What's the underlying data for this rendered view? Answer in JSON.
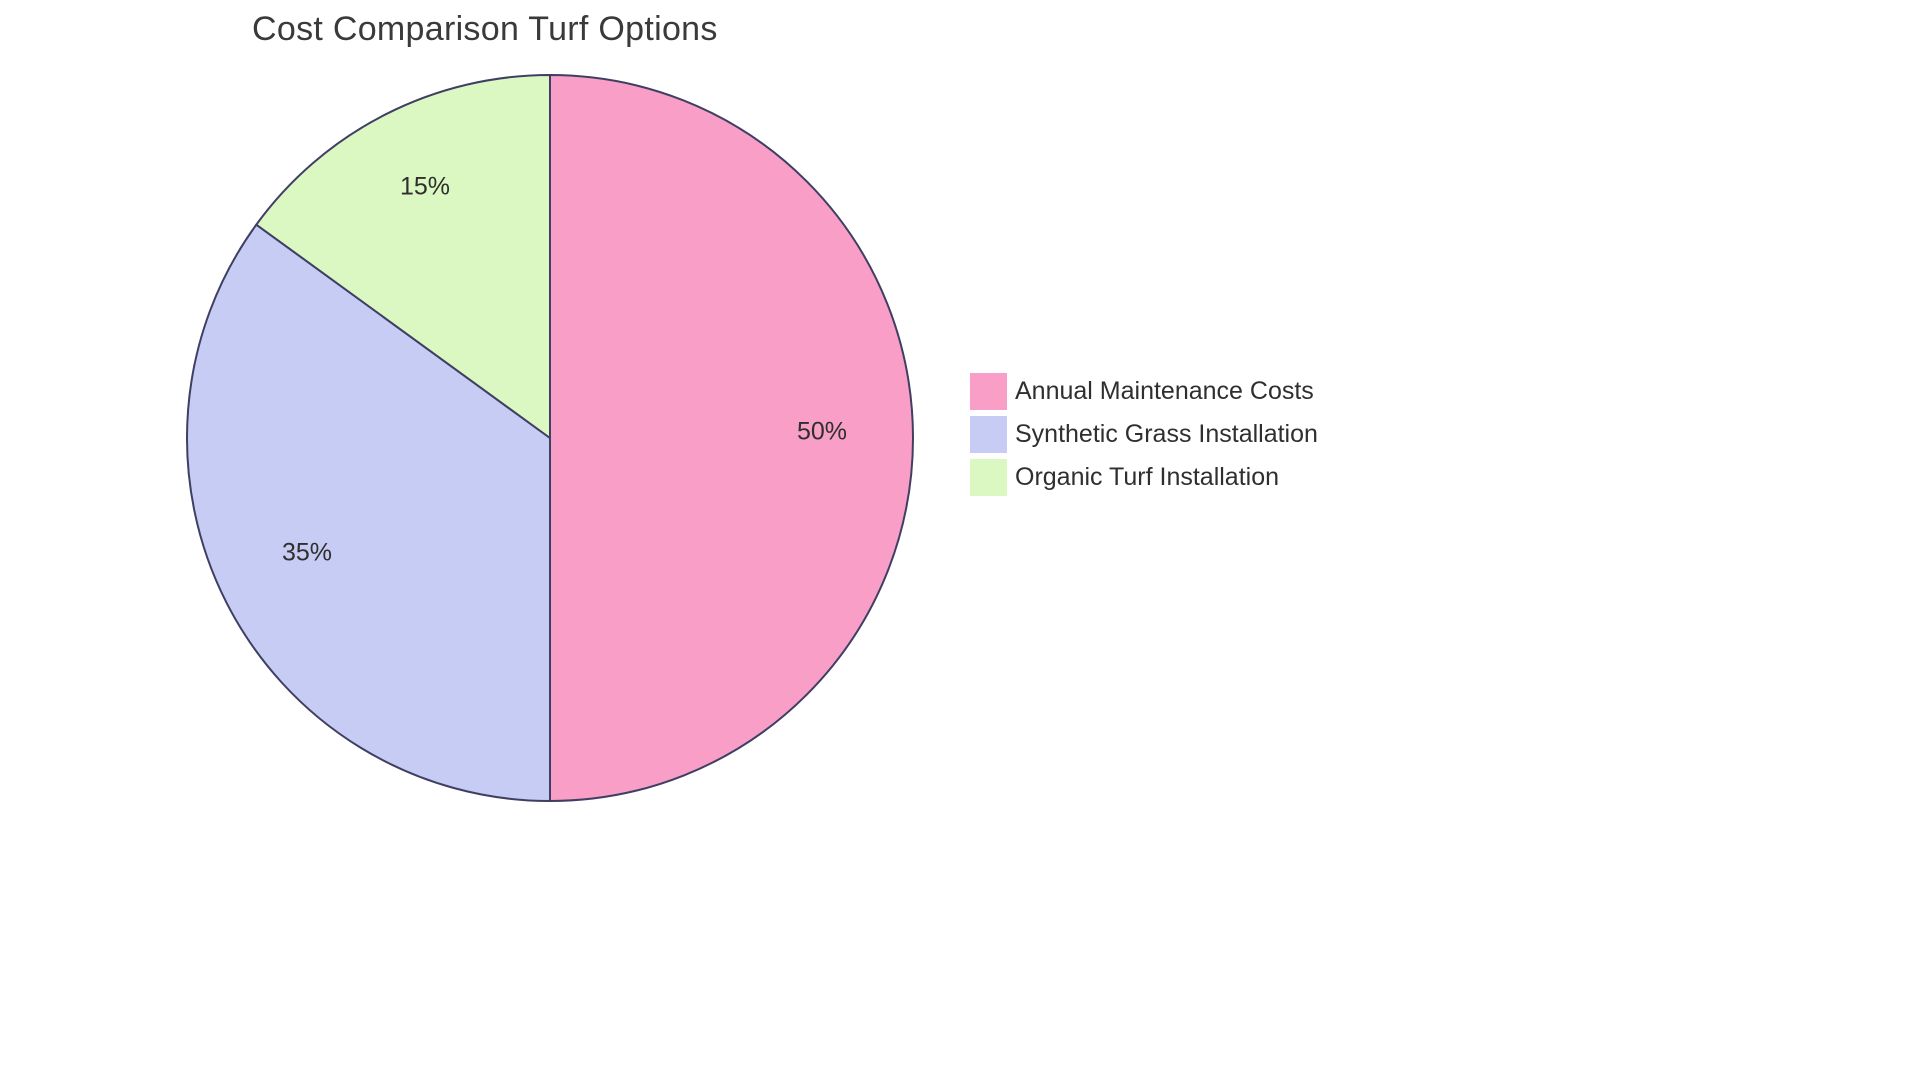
{
  "chart_data": {
    "type": "pie",
    "title": "Cost Comparison Turf Options",
    "legend_position": "right",
    "direction": "clockwise",
    "start_angle_deg": 0,
    "stroke_color": "#3f3f63",
    "background_color": "#ffffff",
    "slices": [
      {
        "label": "Annual Maintenance Costs",
        "value": 50,
        "pct_label": "50%",
        "color": "#f99ec7"
      },
      {
        "label": "Synthetic Grass Installation",
        "value": 35,
        "pct_label": "35%",
        "color": "#c7ccf4"
      },
      {
        "label": "Organic Turf Installation",
        "value": 15,
        "pct_label": "15%",
        "color": "#dcf8c2"
      }
    ]
  }
}
